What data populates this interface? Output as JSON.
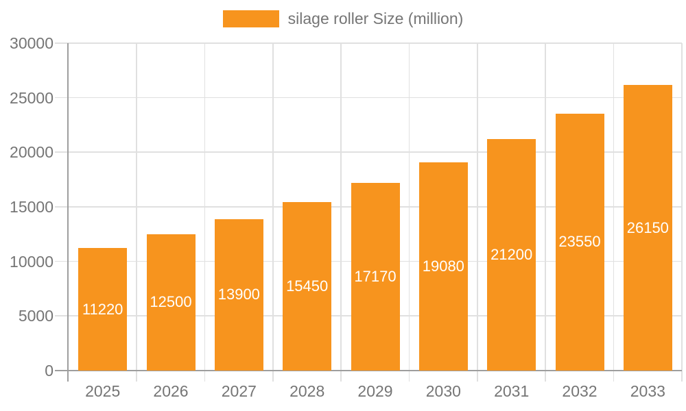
{
  "chart_data": {
    "type": "bar",
    "title": "silage roller Size (million)",
    "categories": [
      "2025",
      "2026",
      "2027",
      "2028",
      "2029",
      "2030",
      "2031",
      "2032",
      "2033"
    ],
    "values": [
      11220,
      12500,
      13900,
      15450,
      17170,
      19080,
      21200,
      23550,
      26150
    ],
    "value_labels": [
      "11220",
      "12500",
      "13900",
      "15450",
      "17170",
      "19080",
      "21200",
      "23550",
      "26150"
    ],
    "ylim": [
      0,
      30000
    ],
    "ytick_step": 5000,
    "ytick_labels": [
      "0",
      "5000",
      "10000",
      "15000",
      "20000",
      "25000",
      "30000"
    ],
    "xlabel": "",
    "ylabel": "",
    "grid": true,
    "legend": {
      "label": "silage roller Size (million)",
      "position": "top"
    },
    "colors": {
      "bar": "#f7941e",
      "bar_label": "#ffffff",
      "axis_text": "#757575",
      "gridline": "#e0e0e0",
      "axis_line": "#9e9e9e",
      "background": "#ffffff"
    }
  }
}
